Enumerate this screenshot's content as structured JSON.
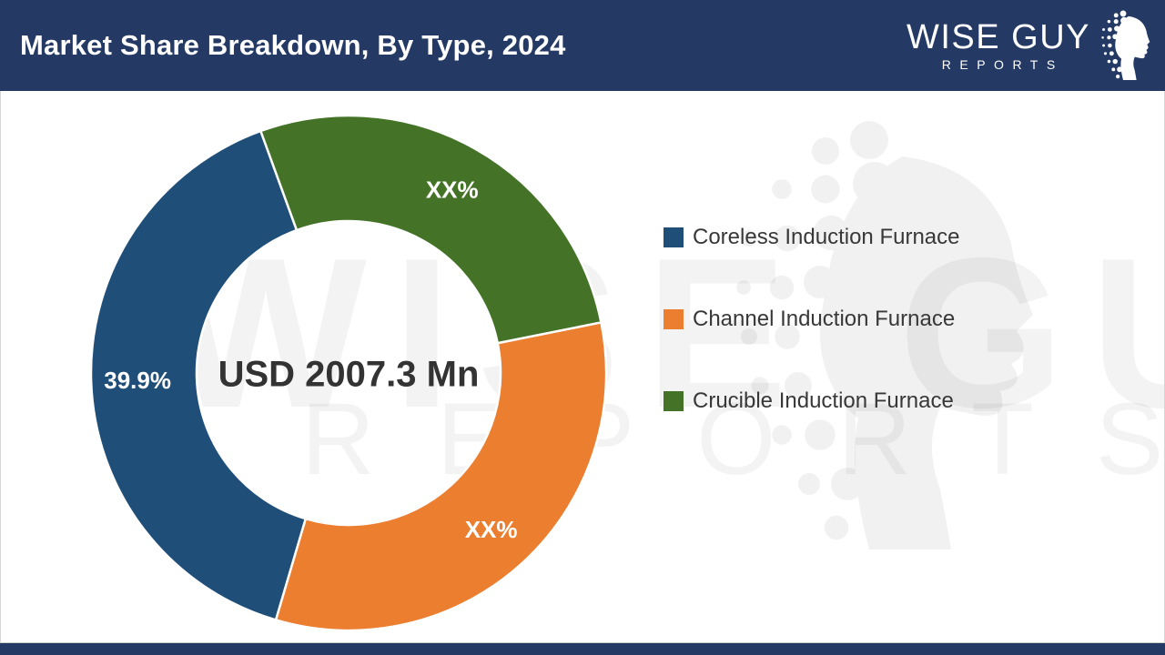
{
  "header": {
    "title": "Market Share Breakdown, By Type, 2024",
    "bg_color": "#243A64",
    "logo": {
      "line1": "WISE GUY",
      "line2": "REPORTS"
    }
  },
  "watermark": {
    "line1": "WISE GUY",
    "line2": "REPORTS"
  },
  "chart_data": {
    "type": "donut",
    "title": "Market Share Breakdown, By Type, 2024",
    "center_label": "USD 2007.3 Mn",
    "units": "USD Mn",
    "total_value_label": "USD 2007.3 Mn",
    "start_angle_from_top_deg": 196.4,
    "direction": "clockwise",
    "inner_radius_ratio": 0.59,
    "segments": [
      {
        "label": "Coreless Induction Furnace",
        "color": "#1F4E79",
        "value_pct": 39.9,
        "display_label": "39.9%"
      },
      {
        "label": "Crucible Induction Furnace",
        "color": "#447327",
        "value_pct": 27.4,
        "display_label": "XX%"
      },
      {
        "label": "Channel Induction Furnace",
        "color": "#EC7E30",
        "value_pct": 32.7,
        "display_label": "XX%"
      }
    ],
    "legend_order": [
      0,
      2,
      1
    ],
    "legend_position": "right",
    "label_text_color": "#ffffff",
    "center_text_color": "#333333"
  }
}
